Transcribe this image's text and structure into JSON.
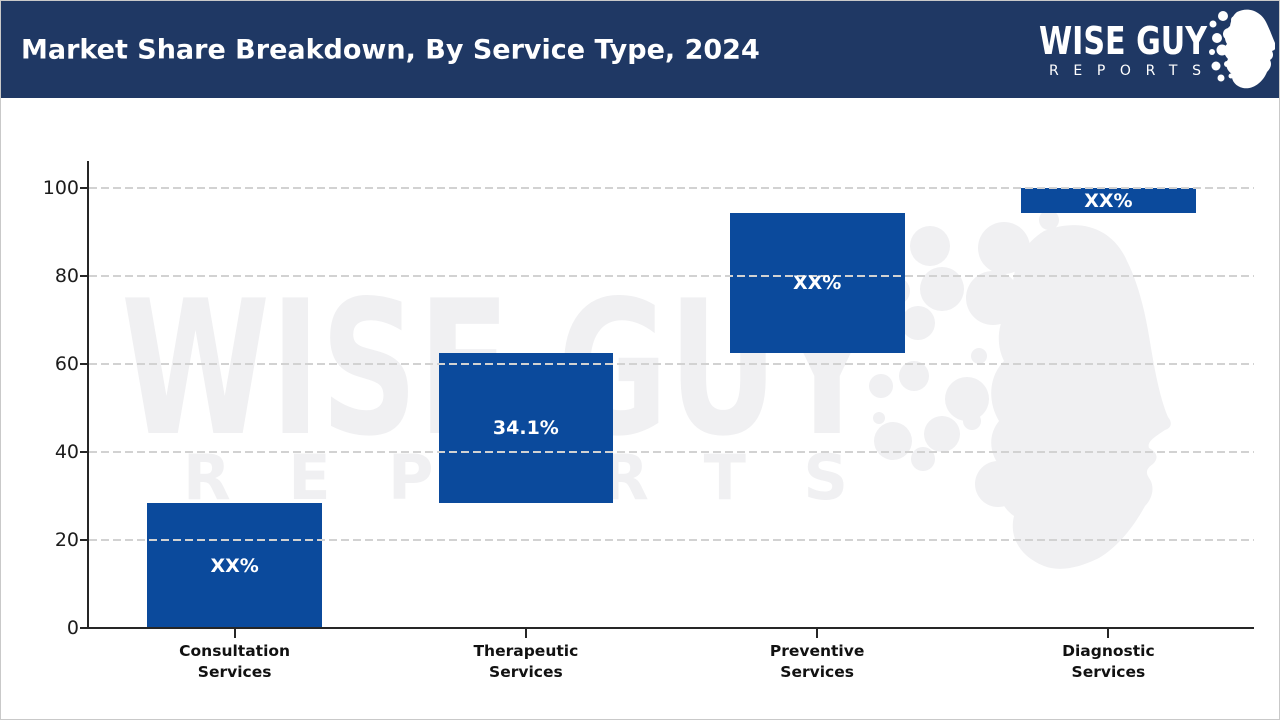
{
  "header": {
    "title": "Market Share Breakdown, By Service Type, 2024",
    "brand": {
      "line1": "WISE GUY",
      "line2": "REPORTS"
    }
  },
  "watermark": {
    "line1": "WISE GUY",
    "line2": "REPORTS"
  },
  "chart_data": {
    "type": "bar",
    "subtype": "floating-segment (waterfall-style market share breakdown)",
    "title": "Market Share Breakdown, By Service Type, 2024",
    "xlabel": "",
    "ylabel": "",
    "ylim": [
      0,
      100
    ],
    "yticks": [
      0,
      20,
      40,
      60,
      80,
      100
    ],
    "grid": "horizontal dashed",
    "legend": "none",
    "bar_color": "#0b4a9c",
    "bar_width_fraction": 0.6,
    "categories": [
      "Consultation\nServices",
      "Therapeutic\nServices",
      "Preventive\nServices",
      "Diagnostic\nServices"
    ],
    "bars": [
      {
        "category": "Consultation Services",
        "start": 0,
        "end": 28.4,
        "height": 28.4,
        "value_label": "XX%"
      },
      {
        "category": "Therapeutic Services",
        "start": 28.4,
        "end": 62.5,
        "height": 34.1,
        "value_label": "34.1%"
      },
      {
        "category": "Preventive Services",
        "start": 62.5,
        "end": 94.3,
        "height": 31.8,
        "value_label": "XX%"
      },
      {
        "category": "Diagnostic Services",
        "start": 94.3,
        "end": 100,
        "height": 5.7,
        "value_label": "XX%"
      }
    ]
  },
  "colors": {
    "header_bg": "#1f3864",
    "title_text": "#ffffff",
    "bar_fill": "#0b4a9c",
    "bar_label_text": "#ffffff",
    "axis": "#262626",
    "gridline": "#d2d2d2",
    "tick_label": "#1c1c1c",
    "watermark": "#f0f0f2",
    "canvas_border": "#c9c9c9",
    "background": "#ffffff"
  }
}
